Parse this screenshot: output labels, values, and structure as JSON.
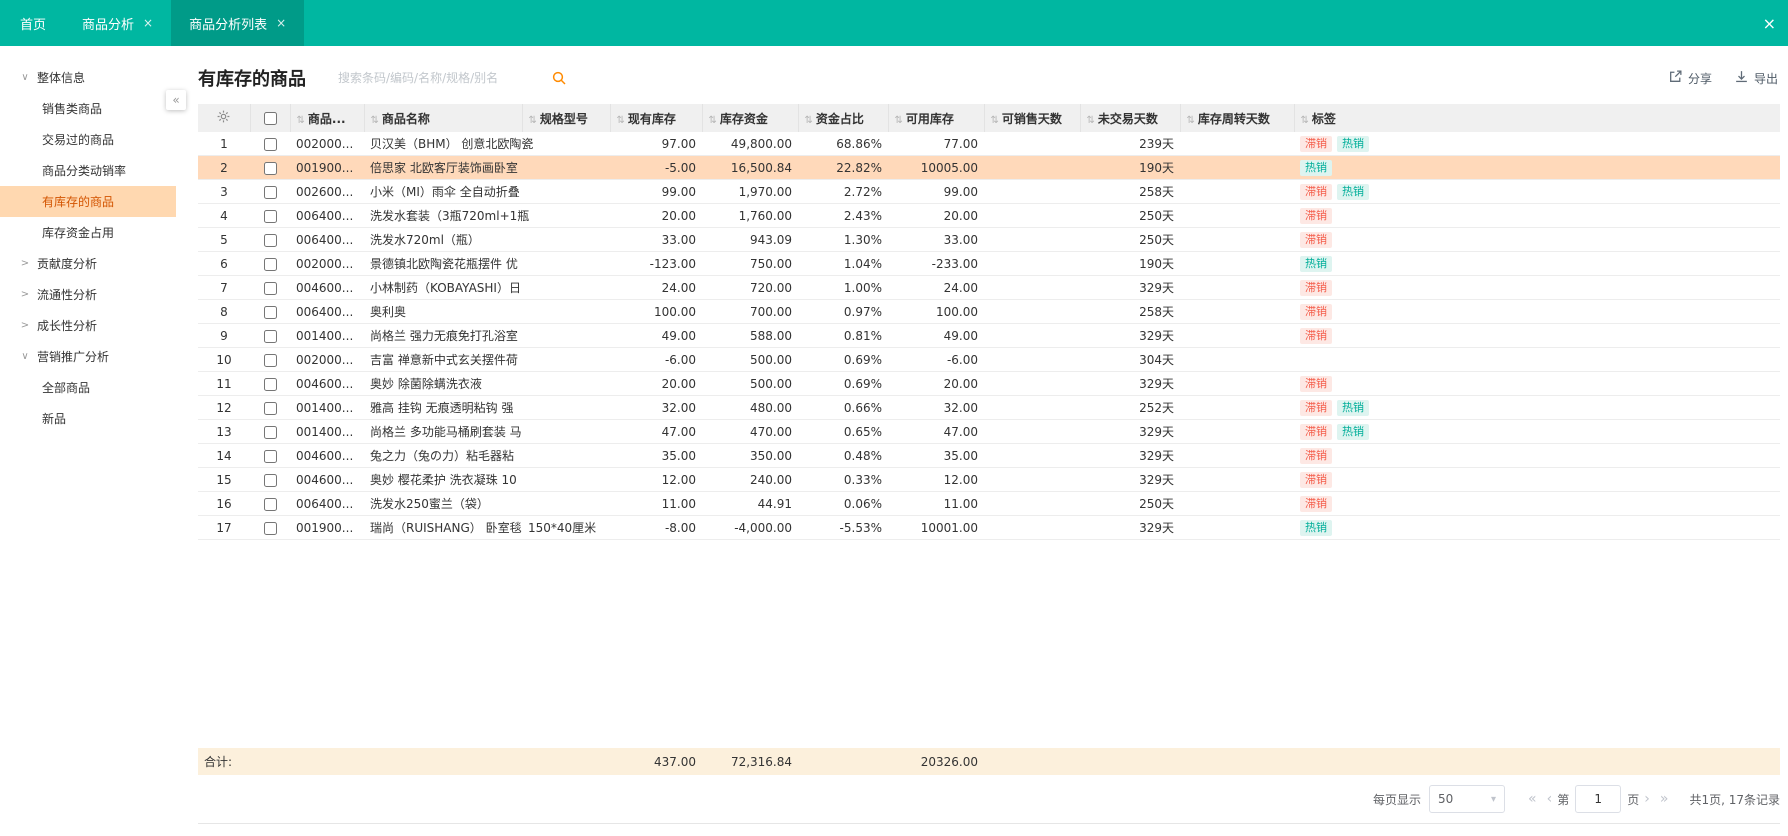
{
  "icons": {
    "close": "×",
    "collapse": "«",
    "chevron_down": "∨",
    "chevron_right": ">",
    "sort": "⇅",
    "select_arrow": "▾",
    "pg_first": "«",
    "pg_prev": "‹",
    "pg_next": "›",
    "pg_last": "»"
  },
  "topbar": {
    "tabs": [
      {
        "label": "首页",
        "closable": false,
        "active": false
      },
      {
        "label": "商品分析",
        "closable": true,
        "active": false
      },
      {
        "label": "商品分析列表",
        "closable": true,
        "active": true
      }
    ]
  },
  "sidebar": {
    "groups": [
      {
        "label": "整体信息",
        "expanded": true,
        "items": [
          {
            "label": "销售类商品",
            "active": false
          },
          {
            "label": "交易过的商品",
            "active": false
          },
          {
            "label": "商品分类动销率",
            "active": false
          },
          {
            "label": "有库存的商品",
            "active": true
          },
          {
            "label": "库存资金占用",
            "active": false
          }
        ]
      },
      {
        "label": "贡献度分析",
        "expanded": false,
        "items": []
      },
      {
        "label": "流通性分析",
        "expanded": false,
        "items": []
      },
      {
        "label": "成长性分析",
        "expanded": false,
        "items": []
      },
      {
        "label": "营销推广分析",
        "expanded": true,
        "items": [
          {
            "label": "全部商品",
            "active": false
          },
          {
            "label": "新品",
            "active": false
          }
        ]
      }
    ]
  },
  "main": {
    "title": "有库存的商品",
    "search_placeholder": "搜索条码/编码/名称/规格/别名",
    "share_label": "分享",
    "export_label": "导出"
  },
  "table": {
    "headers": [
      "商品...",
      "商品名称",
      "规格型号",
      "现有库存",
      "库存资金",
      "资金占比",
      "可用库存",
      "可销售天数",
      "未交易天数",
      "库存周转天数",
      "标签"
    ],
    "rows": [
      {
        "num": "1",
        "code": "002000...",
        "name": "贝汉美（BHM） 创意北欧陶瓷",
        "spec": "",
        "stock": "97.00",
        "fund": "49,800.00",
        "ratio": "68.86%",
        "available": "77.00",
        "sellable_days": "",
        "no_trade_days": "239天",
        "turnover_days": "",
        "tags": [
          {
            "text": "滞销",
            "kind": "slow"
          },
          {
            "text": "热销",
            "kind": "hot"
          }
        ]
      },
      {
        "num": "2",
        "code": "001900...",
        "name": "倍思家 北欧客厅装饰画卧室",
        "spec": "",
        "stock": "-5.00",
        "fund": "16,500.84",
        "ratio": "22.82%",
        "available": "10005.00",
        "sellable_days": "",
        "no_trade_days": "190天",
        "turnover_days": "",
        "tags": [
          {
            "text": "热销",
            "kind": "hot"
          }
        ],
        "selected": true
      },
      {
        "num": "3",
        "code": "002600...",
        "name": "小米（MI）雨伞 全自动折叠",
        "spec": "",
        "stock": "99.00",
        "fund": "1,970.00",
        "ratio": "2.72%",
        "available": "99.00",
        "sellable_days": "",
        "no_trade_days": "258天",
        "turnover_days": "",
        "tags": [
          {
            "text": "滞销",
            "kind": "slow"
          },
          {
            "text": "热销",
            "kind": "hot"
          }
        ]
      },
      {
        "num": "4",
        "code": "006400...",
        "name": "洗发水套装（3瓶720ml+1瓶",
        "spec": "",
        "stock": "20.00",
        "fund": "1,760.00",
        "ratio": "2.43%",
        "available": "20.00",
        "sellable_days": "",
        "no_trade_days": "250天",
        "turnover_days": "",
        "tags": [
          {
            "text": "滞销",
            "kind": "slow"
          }
        ]
      },
      {
        "num": "5",
        "code": "006400...",
        "name": "洗发水720ml（瓶）",
        "spec": "",
        "stock": "33.00",
        "fund": "943.09",
        "ratio": "1.30%",
        "available": "33.00",
        "sellable_days": "",
        "no_trade_days": "250天",
        "turnover_days": "",
        "tags": [
          {
            "text": "滞销",
            "kind": "slow"
          }
        ]
      },
      {
        "num": "6",
        "code": "002000...",
        "name": "景德镇北欧陶瓷花瓶摆件 优",
        "spec": "",
        "stock": "-123.00",
        "fund": "750.00",
        "ratio": "1.04%",
        "available": "-233.00",
        "sellable_days": "",
        "no_trade_days": "190天",
        "turnover_days": "",
        "tags": [
          {
            "text": "热销",
            "kind": "hot"
          }
        ]
      },
      {
        "num": "7",
        "code": "004600...",
        "name": "小林制药（KOBAYASHI）日",
        "spec": "",
        "stock": "24.00",
        "fund": "720.00",
        "ratio": "1.00%",
        "available": "24.00",
        "sellable_days": "",
        "no_trade_days": "329天",
        "turnover_days": "",
        "tags": [
          {
            "text": "滞销",
            "kind": "slow"
          }
        ]
      },
      {
        "num": "8",
        "code": "006400...",
        "name": "奥利奥",
        "spec": "",
        "stock": "100.00",
        "fund": "700.00",
        "ratio": "0.97%",
        "available": "100.00",
        "sellable_days": "",
        "no_trade_days": "258天",
        "turnover_days": "",
        "tags": [
          {
            "text": "滞销",
            "kind": "slow"
          }
        ]
      },
      {
        "num": "9",
        "code": "001400...",
        "name": "尚格兰 强力无痕免打孔浴室",
        "spec": "",
        "stock": "49.00",
        "fund": "588.00",
        "ratio": "0.81%",
        "available": "49.00",
        "sellable_days": "",
        "no_trade_days": "329天",
        "turnover_days": "",
        "tags": [
          {
            "text": "滞销",
            "kind": "slow"
          }
        ]
      },
      {
        "num": "10",
        "code": "002000...",
        "name": "吉富 禅意新中式玄关摆件荷",
        "spec": "",
        "stock": "-6.00",
        "fund": "500.00",
        "ratio": "0.69%",
        "available": "-6.00",
        "sellable_days": "",
        "no_trade_days": "304天",
        "turnover_days": "",
        "tags": []
      },
      {
        "num": "11",
        "code": "004600...",
        "name": "奥妙 除菌除螨洗衣液",
        "spec": "",
        "stock": "20.00",
        "fund": "500.00",
        "ratio": "0.69%",
        "available": "20.00",
        "sellable_days": "",
        "no_trade_days": "329天",
        "turnover_days": "",
        "tags": [
          {
            "text": "滞销",
            "kind": "slow"
          }
        ]
      },
      {
        "num": "12",
        "code": "001400...",
        "name": "雅高 挂钩 无痕透明粘钩 强",
        "spec": "",
        "stock": "32.00",
        "fund": "480.00",
        "ratio": "0.66%",
        "available": "32.00",
        "sellable_days": "",
        "no_trade_days": "252天",
        "turnover_days": "",
        "tags": [
          {
            "text": "滞销",
            "kind": "slow"
          },
          {
            "text": "热销",
            "kind": "hot"
          }
        ]
      },
      {
        "num": "13",
        "code": "001400...",
        "name": "尚格兰 多功能马桶刷套装 马",
        "spec": "",
        "stock": "47.00",
        "fund": "470.00",
        "ratio": "0.65%",
        "available": "47.00",
        "sellable_days": "",
        "no_trade_days": "329天",
        "turnover_days": "",
        "tags": [
          {
            "text": "滞销",
            "kind": "slow"
          },
          {
            "text": "热销",
            "kind": "hot"
          }
        ]
      },
      {
        "num": "14",
        "code": "004600...",
        "name": "兔之力（兔の力）粘毛器粘",
        "spec": "",
        "stock": "35.00",
        "fund": "350.00",
        "ratio": "0.48%",
        "available": "35.00",
        "sellable_days": "",
        "no_trade_days": "329天",
        "turnover_days": "",
        "tags": [
          {
            "text": "滞销",
            "kind": "slow"
          }
        ]
      },
      {
        "num": "15",
        "code": "004600...",
        "name": "奥妙 樱花柔护 洗衣凝珠 10",
        "spec": "",
        "stock": "12.00",
        "fund": "240.00",
        "ratio": "0.33%",
        "available": "12.00",
        "sellable_days": "",
        "no_trade_days": "329天",
        "turnover_days": "",
        "tags": [
          {
            "text": "滞销",
            "kind": "slow"
          }
        ]
      },
      {
        "num": "16",
        "code": "006400...",
        "name": "洗发水250蜜兰（袋）",
        "spec": "",
        "stock": "11.00",
        "fund": "44.91",
        "ratio": "0.06%",
        "available": "11.00",
        "sellable_days": "",
        "no_trade_days": "250天",
        "turnover_days": "",
        "tags": [
          {
            "text": "滞销",
            "kind": "slow"
          }
        ]
      },
      {
        "num": "17",
        "code": "001900...",
        "name": "瑞尚（RUISHANG） 卧室毯",
        "spec": "150*40厘米",
        "stock": "-8.00",
        "fund": "-4,000.00",
        "ratio": "-5.53%",
        "available": "10001.00",
        "sellable_days": "",
        "no_trade_days": "329天",
        "turnover_days": "",
        "tags": [
          {
            "text": "热销",
            "kind": "hot"
          }
        ]
      }
    ],
    "summary": {
      "label": "合计:",
      "stock": "437.00",
      "fund": "72,316.84",
      "available": "20326.00"
    }
  },
  "pagination": {
    "per_page_label": "每页显示",
    "per_page_value": "50",
    "page_prefix": "第",
    "page_value": "1",
    "page_suffix": "页",
    "total": "共1页, 17条记录"
  }
}
